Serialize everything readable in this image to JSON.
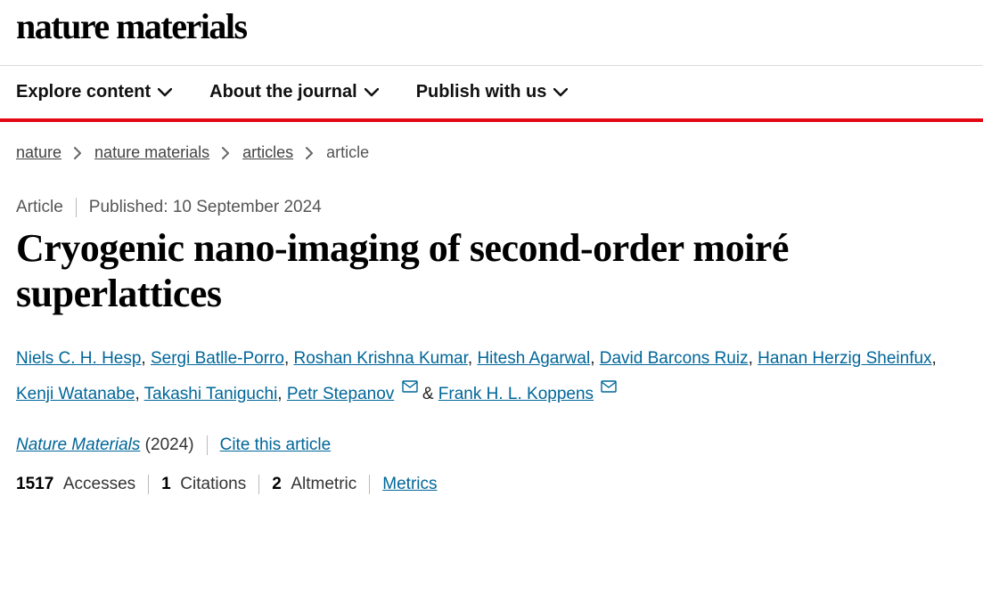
{
  "logo": "nature materials",
  "nav": [
    {
      "label": "Explore content"
    },
    {
      "label": "About the journal"
    },
    {
      "label": "Publish with us"
    }
  ],
  "breadcrumb": {
    "links": [
      {
        "label": "nature"
      },
      {
        "label": "nature materials"
      },
      {
        "label": "articles"
      }
    ],
    "current": "article"
  },
  "meta": {
    "type": "Article",
    "published_label": "Published:",
    "published_date": "10 September 2024"
  },
  "title": "Cryogenic nano-imaging of second-order moiré superlattices",
  "authors": [
    {
      "name": "Niels C. H. Hesp",
      "email": false,
      "suffix": ", "
    },
    {
      "name": "Sergi Batlle-Porro",
      "email": false,
      "suffix": ", "
    },
    {
      "name": "Roshan Krishna Kumar",
      "email": false,
      "suffix": ", "
    },
    {
      "name": "Hitesh Agarwal",
      "email": false,
      "suffix": ", "
    },
    {
      "name": "David Barcons Ruiz",
      "email": false,
      "suffix": ", "
    },
    {
      "name": "Hanan Herzig Sheinfux",
      "email": false,
      "suffix": ", "
    },
    {
      "name": "Kenji Watanabe",
      "email": false,
      "suffix": ", "
    },
    {
      "name": "Takashi Taniguchi",
      "email": false,
      "suffix": ", "
    },
    {
      "name": "Petr Stepanov",
      "email": true,
      "suffix": " & "
    },
    {
      "name": "Frank H. L. Koppens",
      "email": true,
      "suffix": ""
    }
  ],
  "citation": {
    "journal": "Nature Materials",
    "year": "(2024)",
    "cite_label": "Cite this article"
  },
  "metrics": {
    "accesses": {
      "value": "1517",
      "label": "Accesses"
    },
    "citations": {
      "value": "1",
      "label": "Citations"
    },
    "altmetric": {
      "value": "2",
      "label": "Altmetric"
    },
    "link": "Metrics"
  },
  "colors": {
    "accent_red": "#e30613",
    "link_blue": "#006699",
    "text_dark": "#222222",
    "text_muted": "#555555",
    "divider": "#bbbbbb"
  }
}
